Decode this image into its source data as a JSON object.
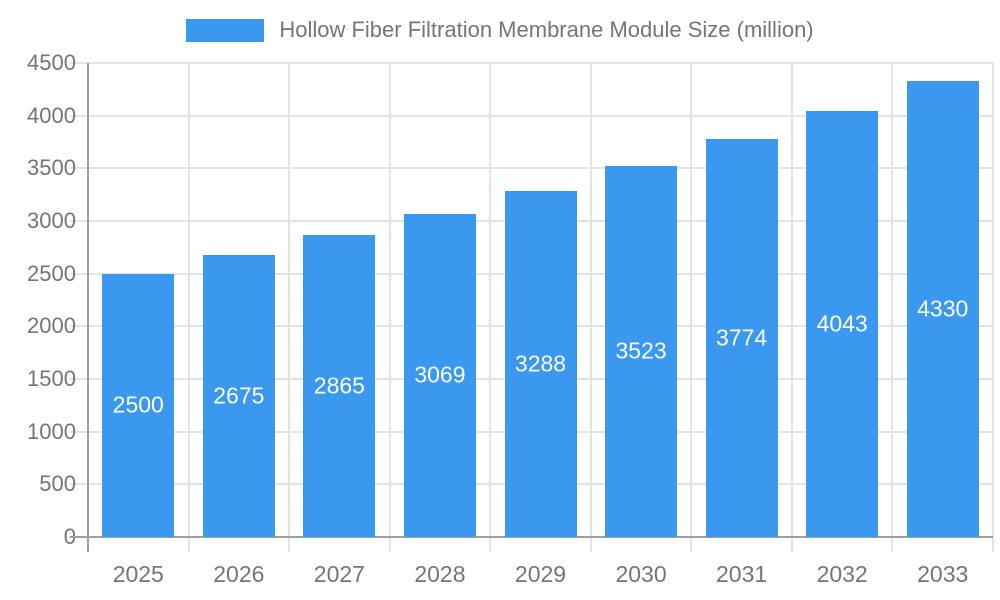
{
  "page": {
    "background_color": "#ffffff"
  },
  "legend": {
    "swatch_color": "#3A99EF"
  },
  "chart_data": {
    "type": "bar",
    "title": "Hollow Fiber Filtration Membrane Module Size (million)",
    "categories": [
      "2025",
      "2026",
      "2027",
      "2028",
      "2029",
      "2030",
      "2031",
      "2032",
      "2033"
    ],
    "values": [
      2500,
      2675,
      2865,
      3069,
      3288,
      3523,
      3774,
      4043,
      4330
    ],
    "xlabel": "",
    "ylabel": "",
    "ylim": [
      0,
      4500
    ],
    "ytick_step": 500,
    "grid": true,
    "legend_position": "top",
    "bar_color": "#3A99EF",
    "bar_label_color": "#ffffff",
    "axis_text_color": "#757575",
    "axis_line_color": "#9E9E9E",
    "grid_color": "#E3E3E3"
  }
}
